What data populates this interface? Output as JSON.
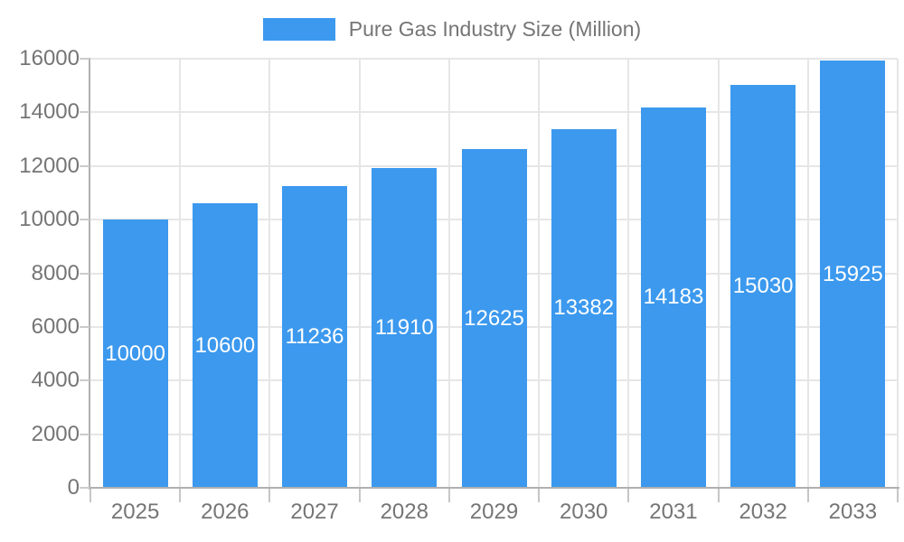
{
  "legend": {
    "label": "Pure Gas Industry Size (Million)"
  },
  "chart_data": {
    "type": "bar",
    "title": "Pure Gas Industry Size (Million)",
    "series_name": "Pure Gas Industry Size (Million)",
    "categories": [
      "2025",
      "2026",
      "2027",
      "2028",
      "2029",
      "2030",
      "2031",
      "2032",
      "2033"
    ],
    "values": [
      10000,
      10600,
      11236,
      11910,
      12625,
      13382,
      14183,
      15030,
      15925
    ],
    "value_labels": [
      "10000",
      "10600",
      "11236",
      "11910",
      "12625",
      "13382",
      "14183",
      "15030",
      "15925"
    ],
    "xlabel": "",
    "ylabel": "",
    "ylim": [
      0,
      16000
    ],
    "ytick_step": 2000,
    "ytick_labels": [
      "0",
      "2000",
      "4000",
      "6000",
      "8000",
      "10000",
      "12000",
      "14000",
      "16000"
    ],
    "grid": true,
    "legend_position": "top-center",
    "bar_color": "#3c99ee",
    "value_label_color": "#ffffff",
    "axis_text_color": "#757575",
    "gridline_color": "#e6e6e6",
    "axis_line_color": "#b0b0b0"
  }
}
